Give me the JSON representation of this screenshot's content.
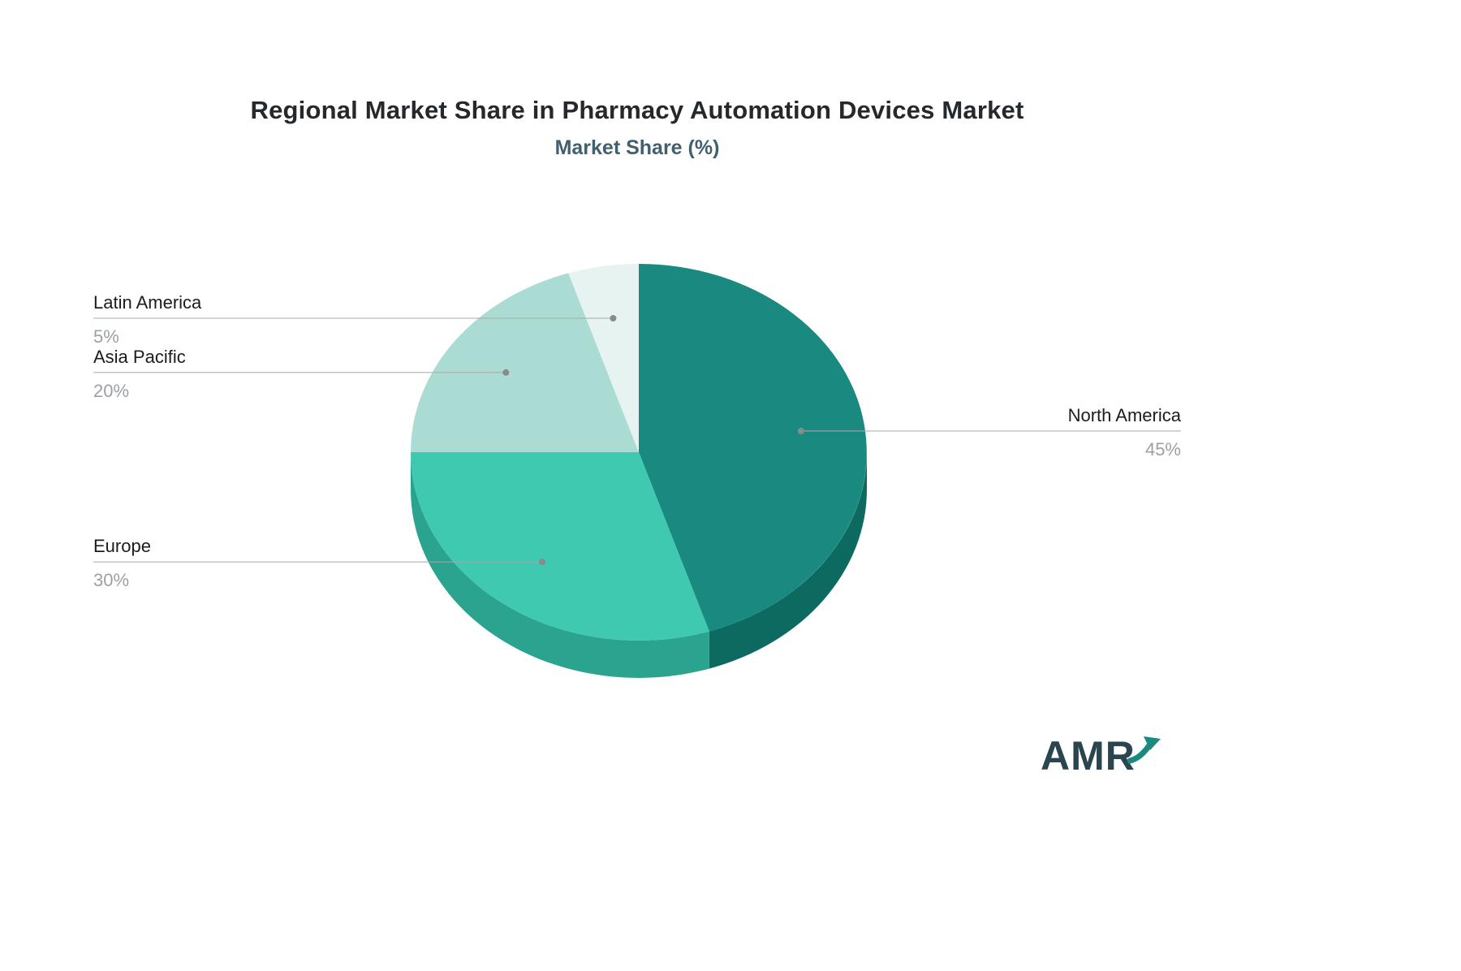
{
  "header": {
    "title": "Regional Market Share in Pharmacy Automation Devices Market",
    "subtitle": "Market Share (%)"
  },
  "logo": {
    "text": "AMR"
  },
  "chart_data": {
    "type": "pie",
    "title": "Regional Market Share in Pharmacy Automation Devices Market",
    "subtitle": "Market Share (%)",
    "unit": "%",
    "start_angle_deg": 0,
    "direction": "clockwise",
    "effect": "3d-extruded",
    "slices": [
      {
        "name": "North America",
        "value": 45,
        "color": "#1a8a80",
        "side_color": "#0d6a61"
      },
      {
        "name": "Europe",
        "value": 30,
        "color": "#3fc9b1",
        "side_color": "#2aa48f"
      },
      {
        "name": "Asia Pacific",
        "value": 20,
        "color": "#abdcd3",
        "side_color": "#8cc7bc"
      },
      {
        "name": "Latin America",
        "value": 5,
        "color": "#e7f3f0",
        "side_color": "#cbe3de"
      }
    ],
    "label_color": "#1c1c1c",
    "value_color": "#9aa0a6",
    "leader_line_color": "#a9a9a9",
    "leader_dot_color": "#8a8a8a",
    "legend_position": "callout-labels",
    "grid": false
  }
}
